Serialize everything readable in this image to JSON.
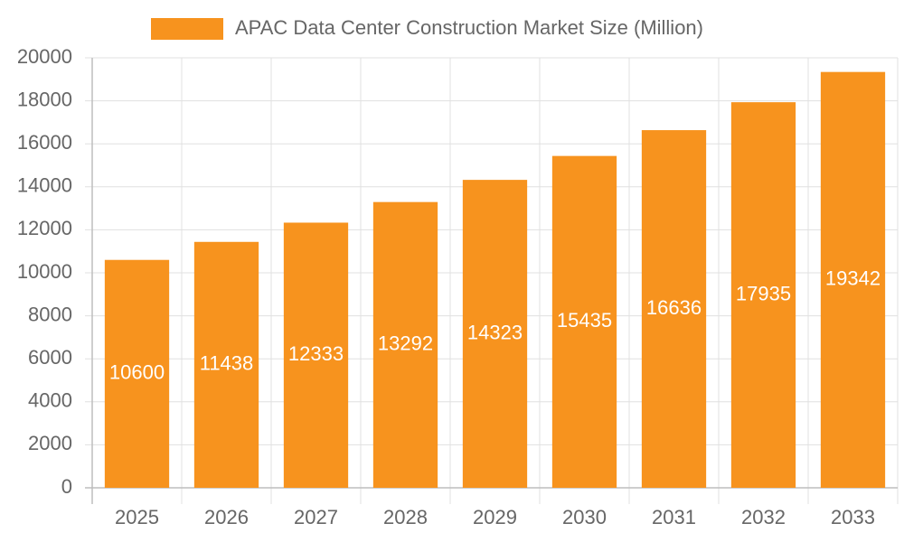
{
  "chart_data": {
    "type": "bar",
    "categories": [
      "2025",
      "2026",
      "2027",
      "2028",
      "2029",
      "2030",
      "2031",
      "2032",
      "2033"
    ],
    "series": [
      {
        "name": "APAC Data Center Construction Market Size (Million)",
        "color": "#f7931e",
        "values": [
          10600,
          11438,
          12333,
          13292,
          14323,
          15435,
          16636,
          17935,
          19342
        ]
      }
    ],
    "ylim": [
      0,
      20000
    ],
    "yticks": [
      0,
      2000,
      4000,
      6000,
      8000,
      10000,
      12000,
      14000,
      16000,
      18000,
      20000
    ],
    "grid": true,
    "legend": "top",
    "data_labels": true
  }
}
